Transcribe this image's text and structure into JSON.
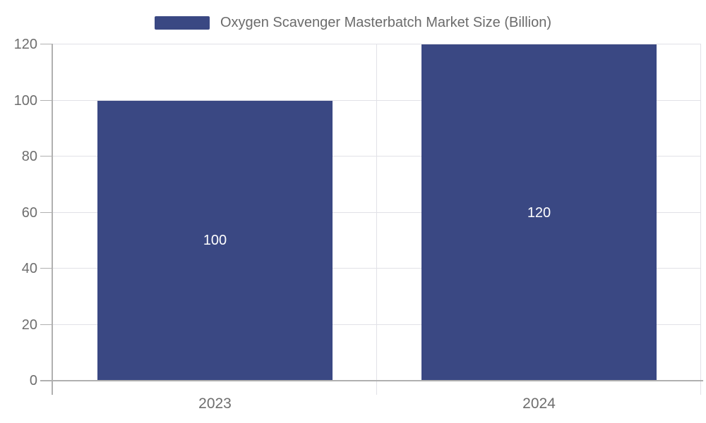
{
  "chart_data": {
    "type": "bar",
    "legend": "Oxygen Scavenger Masterbatch Market Size (Billion)",
    "series_name": "Oxygen Scavenger Masterbatch Market Size (Billion)",
    "categories": [
      "2023",
      "2024"
    ],
    "values": [
      100,
      120
    ],
    "bar_labels": [
      "100",
      "120"
    ],
    "xlabel": "",
    "ylabel": "",
    "ylim": [
      0,
      120
    ],
    "yticks": [
      0,
      20,
      40,
      60,
      80,
      100,
      120
    ],
    "grid": true,
    "legend_position": "top-center",
    "colors": {
      "bar": "#3A4883",
      "axis": "#b0b0b0",
      "grid": "#e1e1e7",
      "text": "#6b6b6b",
      "tick_text": "#6e6e6e",
      "bar_label": "#ffffff",
      "background": "#ffffff"
    }
  }
}
